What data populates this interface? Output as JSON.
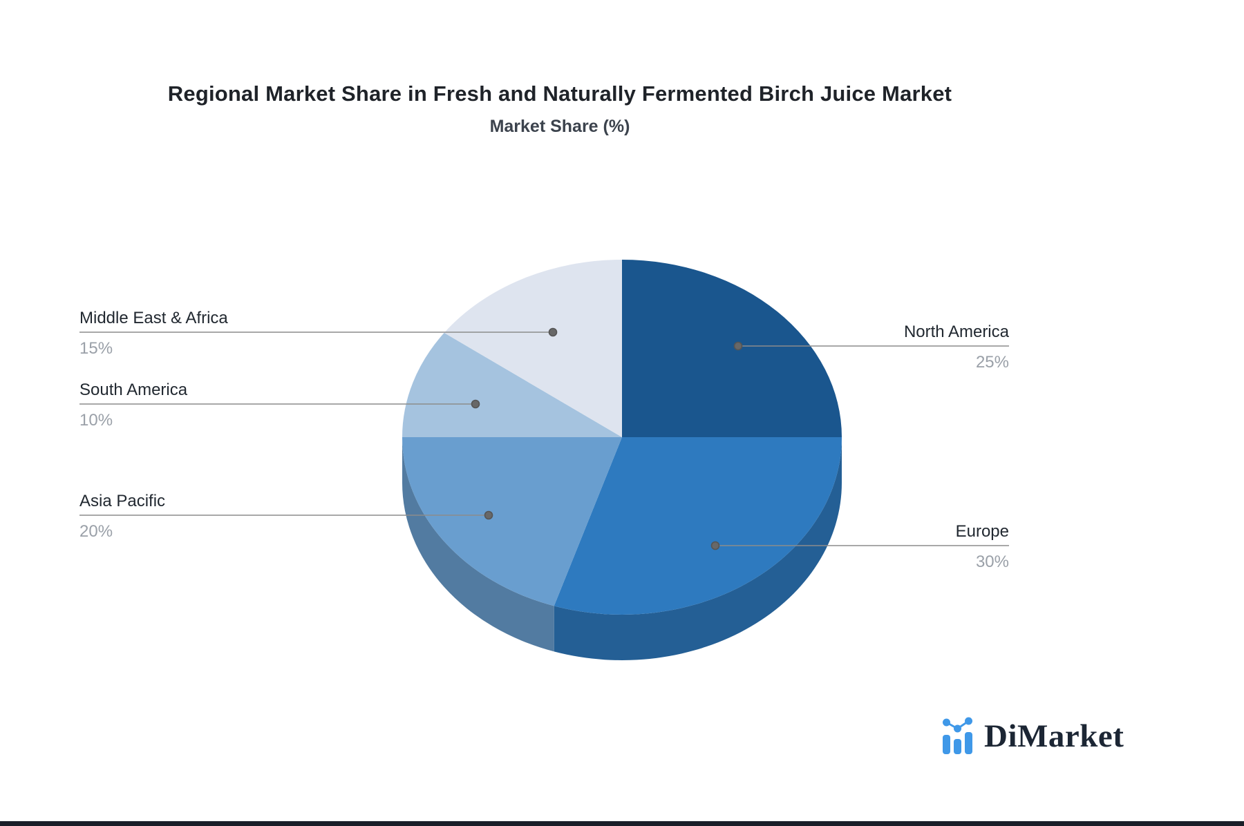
{
  "header": {
    "title": "Regional Market Share in Fresh and Naturally Fermented Birch Juice Market",
    "subtitle": "Market Share (%)"
  },
  "chart_data": {
    "type": "pie",
    "title": "Regional Market Share in Fresh and Naturally Fermented Birch Juice Market",
    "value_label": "Market Share (%)",
    "unit": "%",
    "effect": "3d-depth",
    "start_angle": "12-o-clock, clockwise",
    "legend_position": "callout leader lines",
    "slices": [
      {
        "label": "North America",
        "value": 25,
        "pct_label": "25%",
        "color": "#1A568E",
        "callout_side": "right"
      },
      {
        "label": "Europe",
        "value": 30,
        "pct_label": "30%",
        "color": "#2E7ABF",
        "callout_side": "right"
      },
      {
        "label": "Asia Pacific",
        "value": 20,
        "pct_label": "20%",
        "color": "#699ECF",
        "callout_side": "left"
      },
      {
        "label": "South America",
        "value": 10,
        "pct_label": "10%",
        "color": "#A5C3DF",
        "callout_side": "left"
      },
      {
        "label": "Middle East & Africa",
        "value": 15,
        "pct_label": "15%",
        "color": "#DEE4EF",
        "callout_side": "left"
      }
    ]
  },
  "branding": {
    "logo_text": "DiMarket",
    "logo_icon": "bar-line-chart-icon",
    "logo_color": "#3F98E8",
    "logo_text_color": "#1C2634"
  },
  "colors": {
    "leader_line": "#8C8C8C",
    "leader_dot": "#686868",
    "label_name": "#212830",
    "label_value": "#9AA0A8",
    "footer_bar": "#1A1E28",
    "background": "#FFFFFF"
  }
}
